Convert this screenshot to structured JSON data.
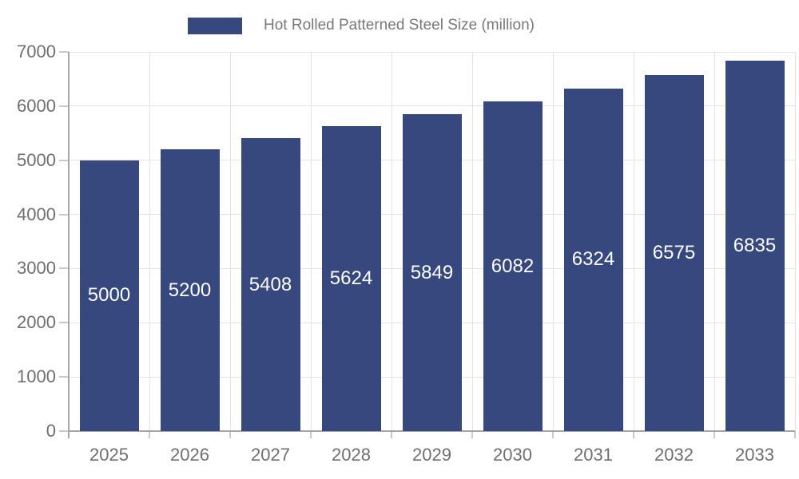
{
  "chart_data": {
    "type": "bar",
    "title": "Hot Rolled Patterned Steel Size (million)",
    "categories": [
      "2025",
      "2026",
      "2027",
      "2028",
      "2029",
      "2030",
      "2031",
      "2032",
      "2033"
    ],
    "series": [
      {
        "name": "Hot Rolled Patterned Steel Size (million)",
        "values": [
          5000,
          5200,
          5408,
          5624,
          5849,
          6082,
          6324,
          6575,
          6835
        ]
      }
    ],
    "value_labels": [
      "5000",
      "5200",
      "5408",
      "5624",
      "5849",
      "6082",
      "6324",
      "6575",
      "6835"
    ],
    "xlabel": "",
    "ylabel": "",
    "ylim": [
      0,
      7000
    ],
    "ytick_step": 1000,
    "yticks": [
      "0",
      "1000",
      "2000",
      "3000",
      "4000",
      "5000",
      "6000",
      "7000"
    ],
    "grid": true,
    "legend_position": "top-center",
    "value_label_position": "inside-center"
  },
  "colors": {
    "bar": "#36487E",
    "value_label": "#FFFFFF",
    "grid_line": "#E3E3E3",
    "axis_line": "#A6A6A6",
    "tick_mark": "#C9C9C9",
    "tick_label": "#6F6F6F",
    "title_text": "#787878",
    "background": "#FFFFFF"
  }
}
